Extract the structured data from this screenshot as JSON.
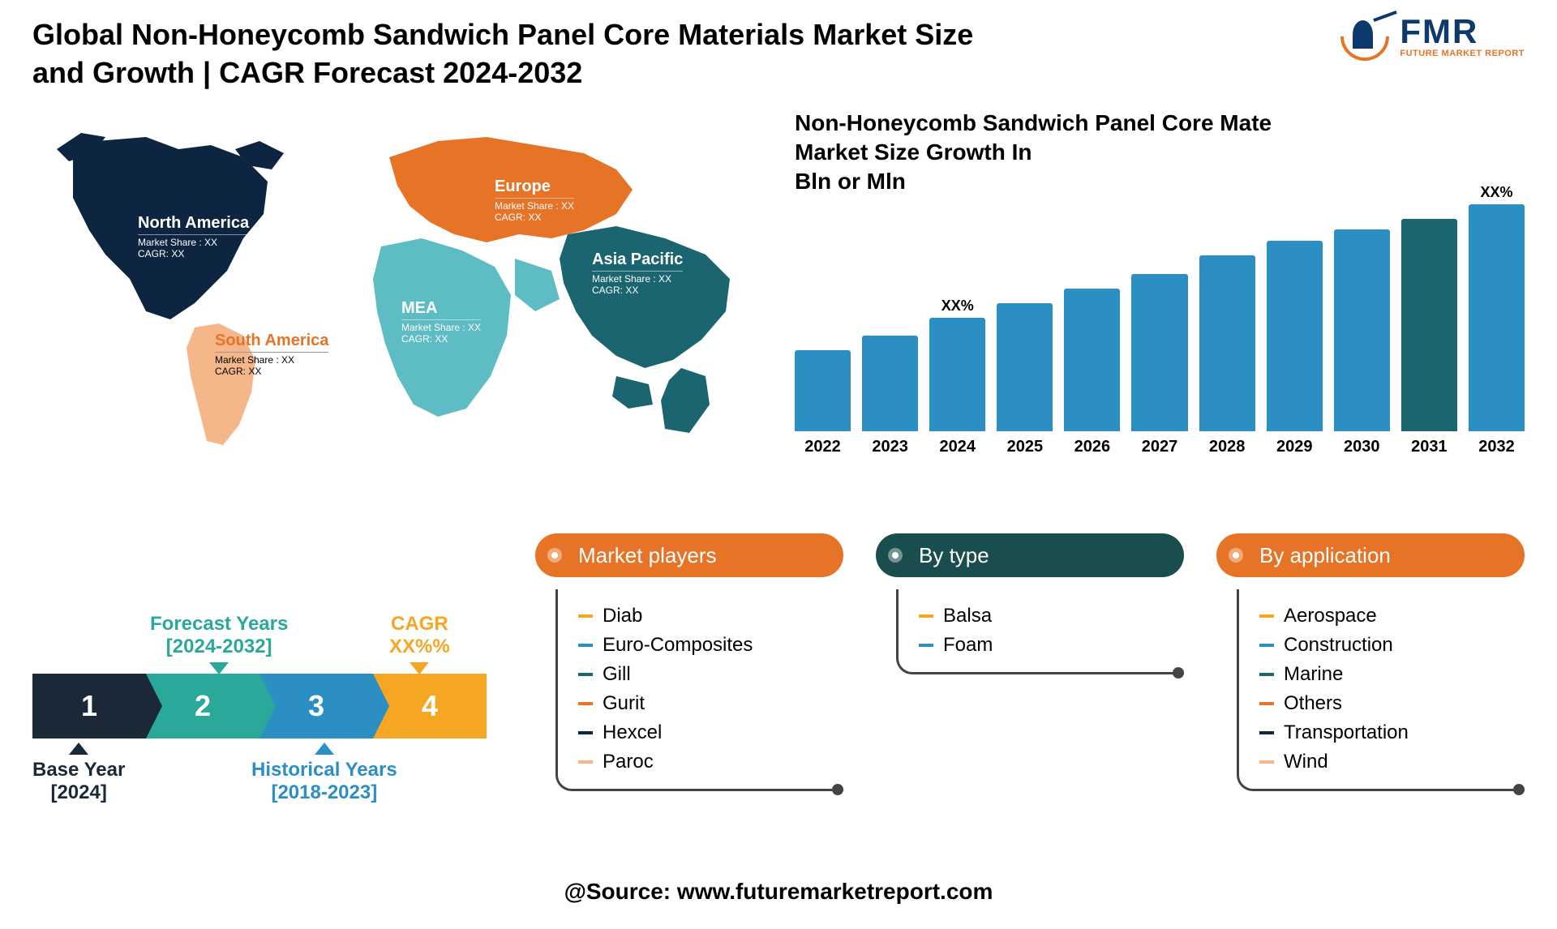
{
  "title": "Global Non-Honeycomb Sandwich Panel Core Materials Market Size and Growth | CAGR Forecast 2024-2032",
  "logo": {
    "main": "FMR",
    "sub": "FUTURE MARKET REPORT"
  },
  "source": "@Source: www.futuremarketreport.com",
  "colors": {
    "northAmerica": "#0d2540",
    "southAmerica": "#f5b78a",
    "europe": "#e67326",
    "mea": "#5dbcc4",
    "asiaPacific": "#1a6570",
    "barColor": "#2b8fc4",
    "barColorDark": "#1a6570",
    "timeline1": "#1a2838",
    "timeline2": "#2aa89a",
    "timeline3": "#2b8fc4",
    "timeline4": "#f5a623",
    "catPlayers": "#e67326",
    "catType": "#1a4d4d",
    "catApp": "#e67326"
  },
  "regions": {
    "na": {
      "name": "North America",
      "share": "Market Share : XX",
      "cagr": "CAGR: XX"
    },
    "sa": {
      "name": "South America",
      "share": "Market Share : XX",
      "cagr": "CAGR: XX"
    },
    "eu": {
      "name": "Europe",
      "share": "Market Share : XX",
      "cagr": "CAGR: XX"
    },
    "mea": {
      "name": "MEA",
      "share": "Market Share : XX",
      "cagr": "CAGR: XX"
    },
    "ap": {
      "name": "Asia Pacific",
      "share": "Market Share : XX",
      "cagr": "CAGR: XX"
    }
  },
  "chart": {
    "titleL1": "Non-Honeycomb Sandwich Panel Core Mate",
    "titleL2": "Market Size Growth In",
    "titleL3": "Bln or Mln",
    "years": [
      "2022",
      "2023",
      "2024",
      "2025",
      "2026",
      "2027",
      "2028",
      "2029",
      "2030",
      "2031",
      "2032"
    ],
    "values": [
      110,
      130,
      155,
      175,
      195,
      215,
      240,
      260,
      275,
      290,
      310
    ],
    "barColors": [
      "#2b8fc4",
      "#2b8fc4",
      "#2b8fc4",
      "#2b8fc4",
      "#2b8fc4",
      "#2b8fc4",
      "#2b8fc4",
      "#2b8fc4",
      "#2b8fc4",
      "#1a6570",
      "#2b8fc4"
    ],
    "pct2024": "XX%",
    "pct2032": "XX%"
  },
  "timeline": {
    "forecast": {
      "label": "Forecast Years",
      "range": "[2024-2032]",
      "color": "#2aa89a"
    },
    "cagr": {
      "label": "CAGR",
      "value": "XX%%",
      "color": "#f5a623"
    },
    "base": {
      "label": "Base Year",
      "range": "[2024]",
      "color": "#1a2838"
    },
    "hist": {
      "label": "Historical Years",
      "range": "[2018-2023]",
      "color": "#2b8fc4"
    },
    "segs": [
      "1",
      "2",
      "3",
      "4"
    ]
  },
  "categories": {
    "players": {
      "title": "Market players",
      "items": [
        "Diab",
        "Euro-Composites",
        "Gill",
        "Gurit",
        "Hexcel",
        "Paroc"
      ],
      "tickColors": [
        "#f5a623",
        "#2b8fc4",
        "#1a6570",
        "#e67326",
        "#0d2540",
        "#f5b78a"
      ]
    },
    "type": {
      "title": "By type",
      "items": [
        "Balsa",
        "Foam"
      ],
      "tickColors": [
        "#f5a623",
        "#2b8fc4"
      ]
    },
    "app": {
      "title": "By application",
      "items": [
        "Aerospace",
        "Construction",
        "Marine",
        "Others",
        "Transportation",
        "Wind"
      ],
      "tickColors": [
        "#f5a623",
        "#2b8fc4",
        "#1a6570",
        "#e67326",
        "#0d2540",
        "#f5b78a"
      ]
    }
  }
}
